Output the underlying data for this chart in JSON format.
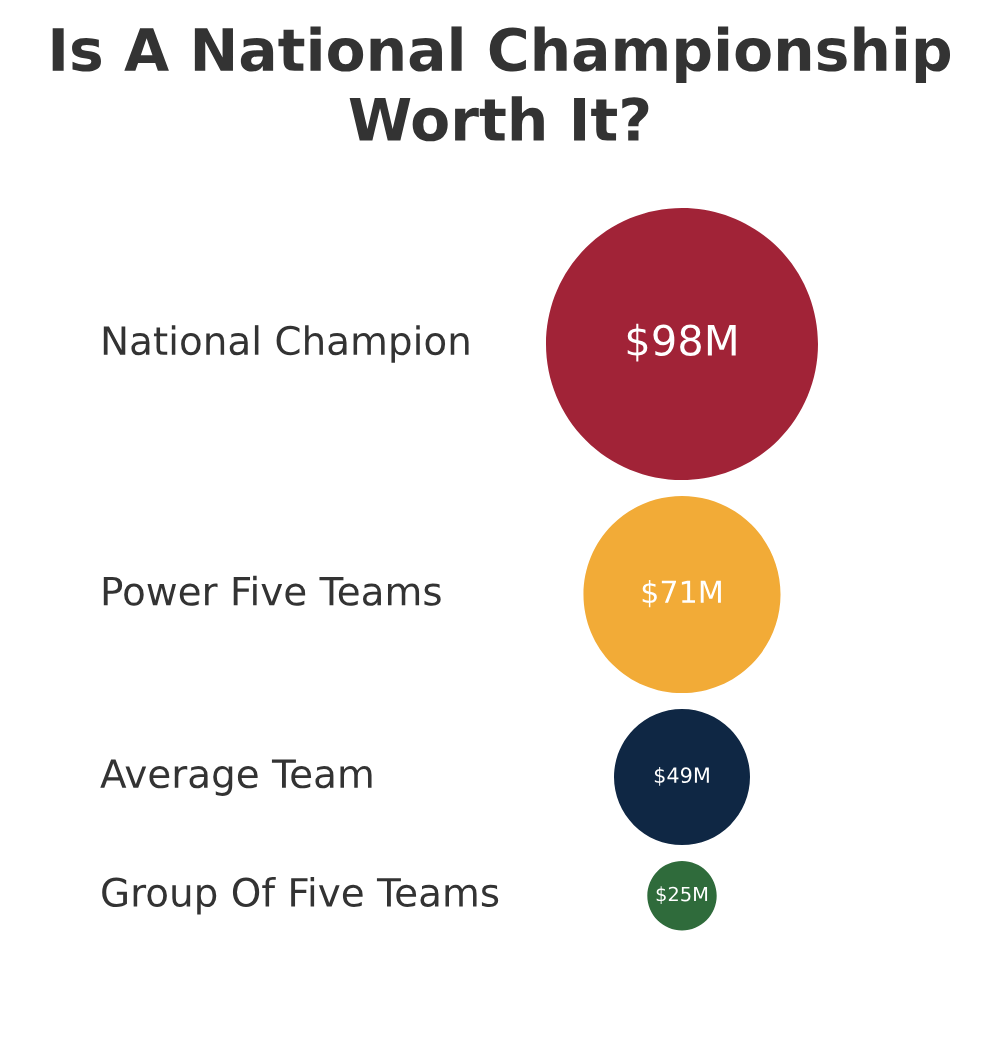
{
  "chart_data": {
    "type": "other",
    "title": "Is A National Championship\nWorth It?",
    "categories": [
      "National Champion",
      "Power Five Teams",
      "Average Team",
      "Group Of Five Teams"
    ],
    "values": [
      98,
      71,
      49,
      25
    ],
    "value_labels": [
      "$98M",
      "$71M",
      "$49M",
      "$25M"
    ],
    "colors": [
      "#a12337",
      "#f2ab37",
      "#0f2744",
      "#2f6b3b"
    ]
  }
}
